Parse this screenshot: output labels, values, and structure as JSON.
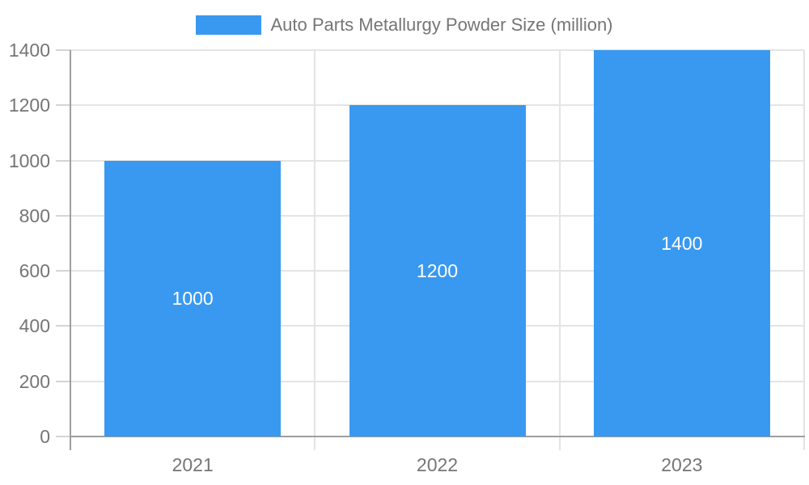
{
  "legend": {
    "label": "Auto Parts Metallurgy Powder Size (million)"
  },
  "chart_data": {
    "type": "bar",
    "title": "Auto Parts Metallurgy Powder Size (million)",
    "categories": [
      "2021",
      "2022",
      "2023"
    ],
    "values": [
      1000,
      1200,
      1400
    ],
    "data_labels": [
      "1000",
      "1200",
      "1400"
    ],
    "xlabel": "",
    "ylabel": "",
    "ylim": [
      0,
      1400
    ],
    "yticks": [
      0,
      200,
      400,
      600,
      800,
      1000,
      1200,
      1400
    ],
    "grid": true,
    "legend_position": "top-center",
    "colors": {
      "bar": "#3999F0",
      "bar_label": "#ffffff",
      "axis_line": "#9e9e9e",
      "grid_line": "#e4e4e4",
      "tick_line": "#d4d4d4",
      "text": "#757575",
      "background": "#ffffff"
    }
  }
}
